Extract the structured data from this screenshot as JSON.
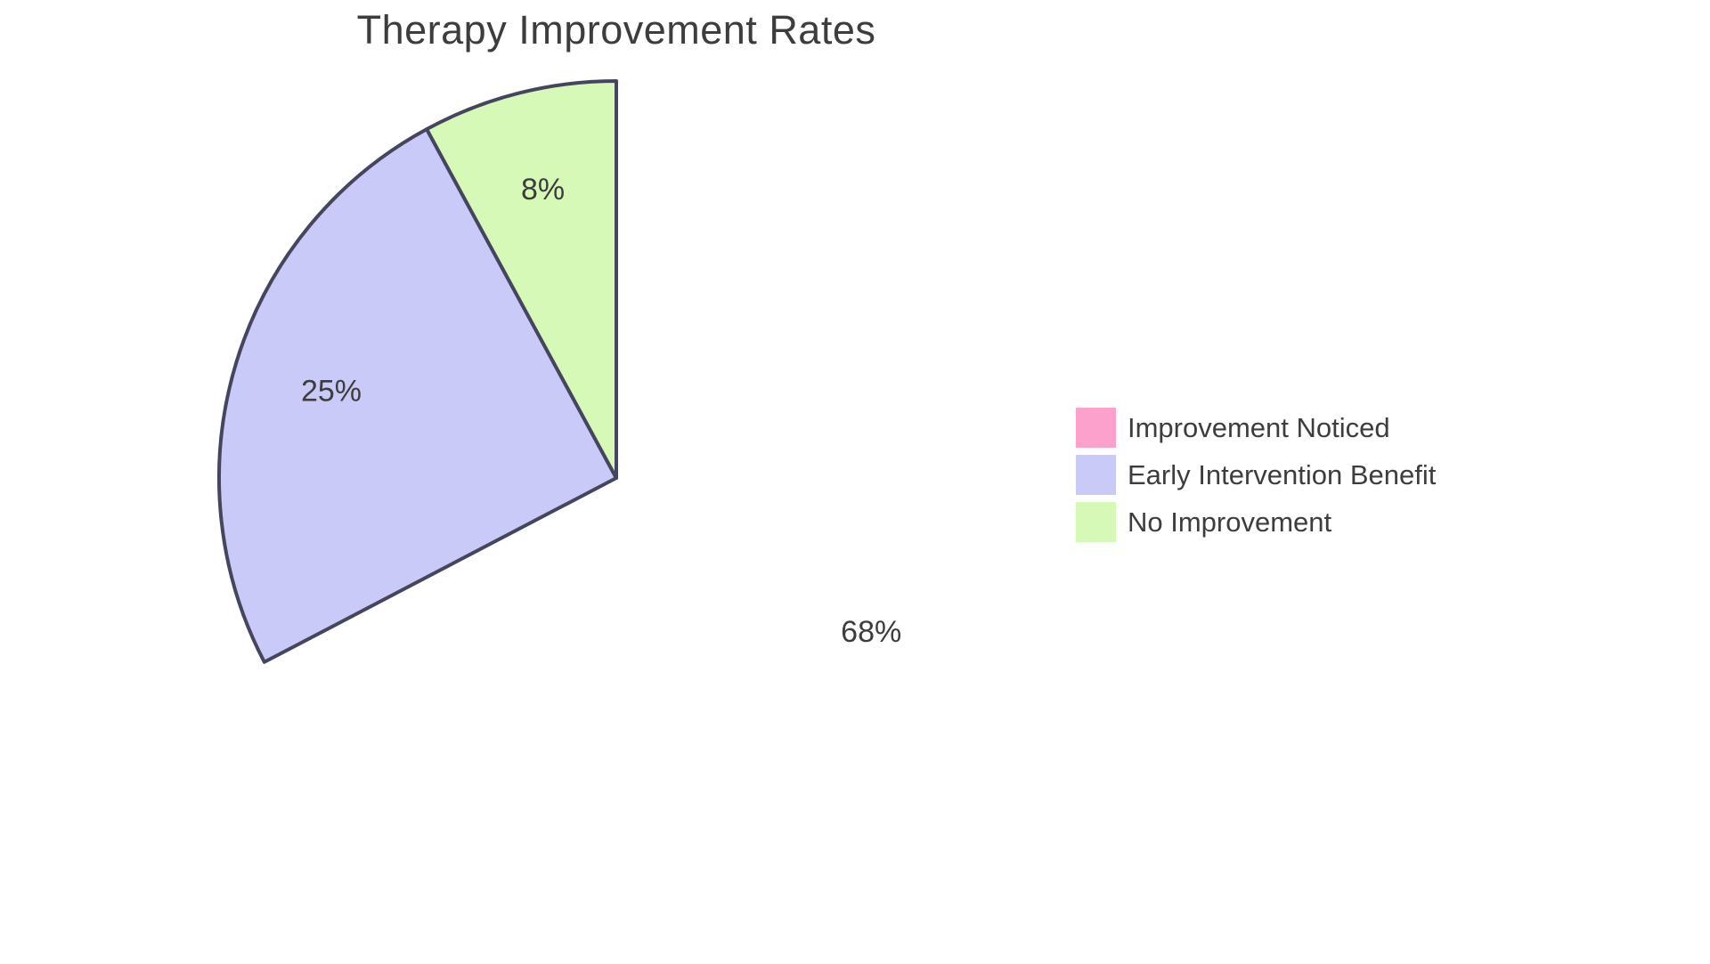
{
  "canvas": {
    "background": "#ffffff"
  },
  "chart_data": {
    "type": "pie",
    "title": "Therapy Improvement Rates",
    "categories": [
      "Improvement Noticed",
      "Early Intervention Benefit",
      "No Improvement"
    ],
    "values": [
      68,
      25,
      8
    ],
    "slices": [
      {
        "label": "Improvement Noticed",
        "value": 68,
        "pct_label": "68%",
        "color": "#fba1cb"
      },
      {
        "label": "Early Intervention Benefit",
        "value": 25,
        "pct_label": "25%",
        "color": "#cacaf8"
      },
      {
        "label": "No Improvement",
        "value": 8,
        "pct_label": "8%",
        "color": "#d7f9b7"
      }
    ],
    "start_angle_deg": 0,
    "direction": "clockwise",
    "stroke_color": "#45455e",
    "stroke_width": 4,
    "label_color": "#3d3d3d",
    "label_radius_fraction": 0.75,
    "legend_position": "right",
    "legend_entries": [
      "Improvement Noticed",
      "Early Intervention Benefit",
      "No Improvement"
    ]
  }
}
